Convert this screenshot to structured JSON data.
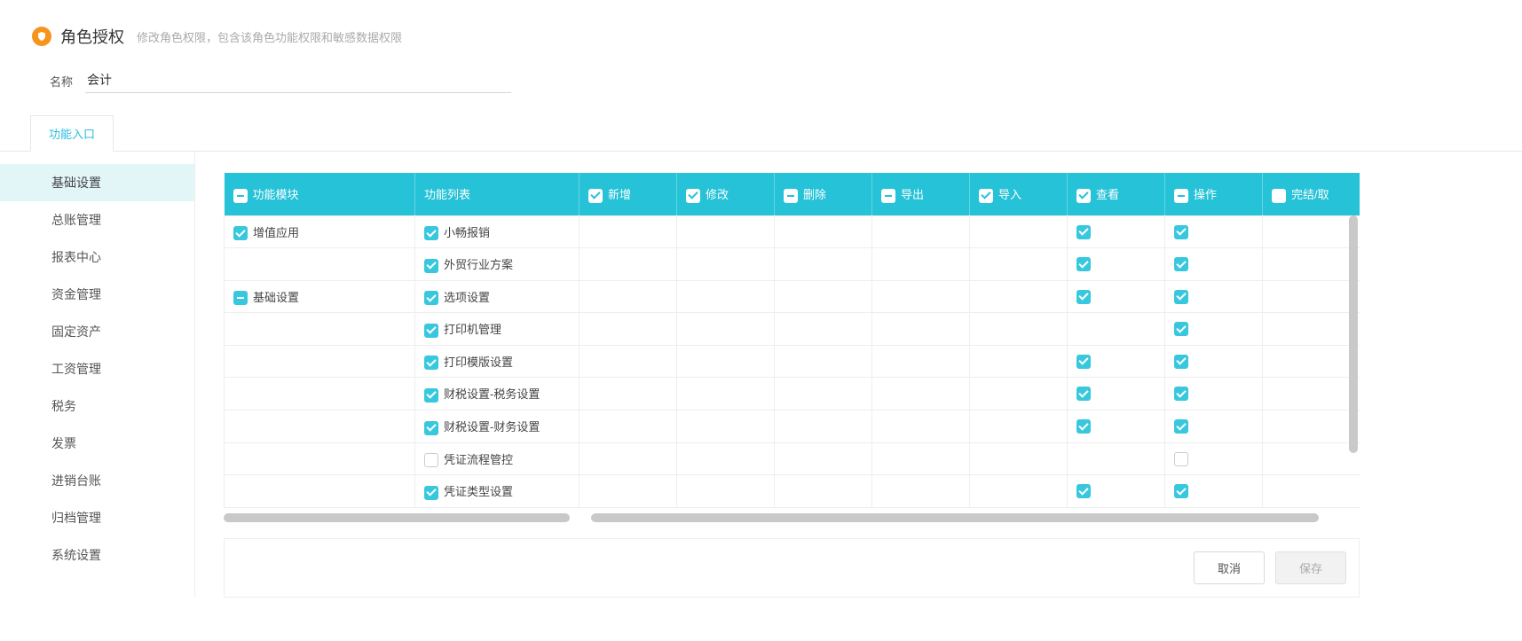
{
  "header": {
    "title": "角色授权",
    "subtitle": "修改角色权限，包含该角色功能权限和敏感数据权限"
  },
  "name": {
    "label": "名称",
    "value": "会计"
  },
  "tab": {
    "label": "功能入口"
  },
  "sidebar": {
    "items": [
      {
        "label": "基础设置",
        "active": true
      },
      {
        "label": "总账管理",
        "active": false
      },
      {
        "label": "报表中心",
        "active": false
      },
      {
        "label": "资金管理",
        "active": false
      },
      {
        "label": "固定资产",
        "active": false
      },
      {
        "label": "工资管理",
        "active": false
      },
      {
        "label": "税务",
        "active": false
      },
      {
        "label": "发票",
        "active": false
      },
      {
        "label": "进销台账",
        "active": false
      },
      {
        "label": "归档管理",
        "active": false
      },
      {
        "label": "系统设置",
        "active": false
      }
    ]
  },
  "table": {
    "headers": [
      {
        "key": "module",
        "label": "功能模块",
        "cb": "mixed"
      },
      {
        "key": "list",
        "label": "功能列表",
        "cb": null
      },
      {
        "key": "add",
        "label": "新增",
        "cb": "checked"
      },
      {
        "key": "edit",
        "label": "修改",
        "cb": "checked"
      },
      {
        "key": "del",
        "label": "删除",
        "cb": "mixed"
      },
      {
        "key": "export",
        "label": "导出",
        "cb": "mixed"
      },
      {
        "key": "import",
        "label": "导入",
        "cb": "checked"
      },
      {
        "key": "view",
        "label": "查看",
        "cb": "checked"
      },
      {
        "key": "op",
        "label": "操作",
        "cb": "mixed"
      },
      {
        "key": "finish",
        "label": "完结/取",
        "cb": "empty"
      }
    ],
    "rows": [
      {
        "module": "增值应用",
        "module_cb": "checked",
        "list": "小畅报销",
        "list_cb": "checked",
        "cells": {
          "view": "checked",
          "op": "checked"
        }
      },
      {
        "module": "",
        "module_cb": null,
        "list": "外贸行业方案",
        "list_cb": "checked",
        "cells": {
          "view": "checked",
          "op": "checked"
        }
      },
      {
        "module": "基础设置",
        "module_cb": "mixed",
        "list": "选项设置",
        "list_cb": "checked",
        "cells": {
          "view": "checked",
          "op": "checked"
        }
      },
      {
        "module": "",
        "module_cb": null,
        "list": "打印机管理",
        "list_cb": "checked",
        "cells": {
          "op": "checked"
        }
      },
      {
        "module": "",
        "module_cb": null,
        "list": "打印模版设置",
        "list_cb": "checked",
        "cells": {
          "view": "checked",
          "op": "checked"
        }
      },
      {
        "module": "",
        "module_cb": null,
        "list": "财税设置-税务设置",
        "list_cb": "checked",
        "cells": {
          "view": "checked",
          "op": "checked"
        }
      },
      {
        "module": "",
        "module_cb": null,
        "list": "财税设置-财务设置",
        "list_cb": "checked",
        "cells": {
          "view": "checked",
          "op": "checked"
        }
      },
      {
        "module": "",
        "module_cb": null,
        "list": "凭证流程管控",
        "list_cb": "empty",
        "cells": {
          "op": "empty"
        }
      },
      {
        "module": "",
        "module_cb": null,
        "list": "凭证类型设置",
        "list_cb": "checked",
        "cells": {
          "view": "checked",
          "op": "checked"
        }
      }
    ]
  },
  "footer": {
    "cancel": "取消",
    "save": "保存"
  },
  "colors": {
    "accent": "#26c2d7",
    "checkbox": "#38c8de",
    "header_icon": "#f7941e",
    "sidebar_active": "#e2f6f8"
  }
}
